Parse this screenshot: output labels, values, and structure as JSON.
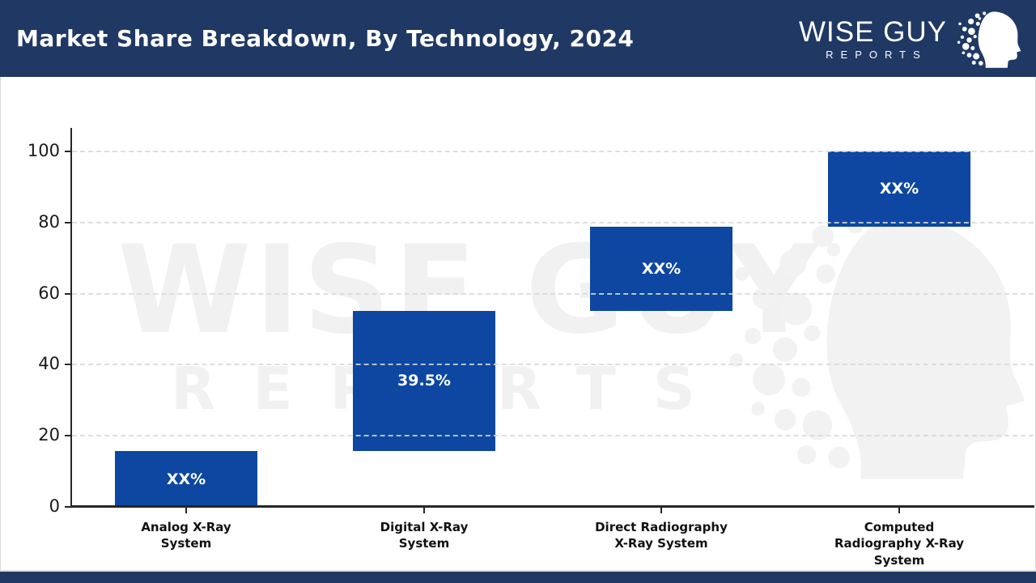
{
  "header": {
    "title": "Market Share Breakdown, By Technology, 2024",
    "brand": {
      "name": "WISE GUY",
      "sub": "REPORTS"
    }
  },
  "watermark": {
    "line1": "WISE GUY",
    "line2": "REPORTS"
  },
  "colors": {
    "header_bg": "#1F3864",
    "bar": "#0D47A1",
    "grid": "#D9D9D9",
    "axis": "#262626",
    "watermark": "#F1F1F1"
  },
  "chart_data": {
    "type": "bar",
    "subtype": "floating-waterfall",
    "title": "Market Share Breakdown, By Technology, 2024",
    "unit": "%",
    "categories": [
      "Analog X-Ray System",
      "Digital X-Ray System",
      "Direct Radiography X-Ray System",
      "Computed Radiography X-Ray System"
    ],
    "bars": [
      {
        "category": "Analog X-Ray System",
        "base": 0,
        "top": 15.7,
        "height": 15.7,
        "label": "XX%",
        "label_lines": [
          "Analog X-Ray",
          "System"
        ]
      },
      {
        "category": "Digital X-Ray System",
        "base": 15.7,
        "top": 55.2,
        "height": 39.5,
        "label": "39.5%",
        "label_lines": [
          "Digital X-Ray",
          "System"
        ]
      },
      {
        "category": "Direct Radiography X-Ray System",
        "base": 55.2,
        "top": 78.9,
        "height": 23.7,
        "label": "XX%",
        "label_lines": [
          "Direct Radiography",
          "X-Ray System"
        ]
      },
      {
        "category": "Computed Radiography X-Ray System",
        "base": 78.9,
        "top": 100,
        "height": 21.1,
        "label": "XX%",
        "label_lines": [
          "Computed",
          "Radiography X-Ray",
          "System"
        ]
      }
    ],
    "yticks": [
      0,
      20,
      40,
      60,
      80,
      100
    ],
    "ylim": [
      0,
      100
    ],
    "grid": {
      "horizontal": true,
      "style": "dashed"
    },
    "legend": null,
    "bar_color": "#0D47A1"
  }
}
